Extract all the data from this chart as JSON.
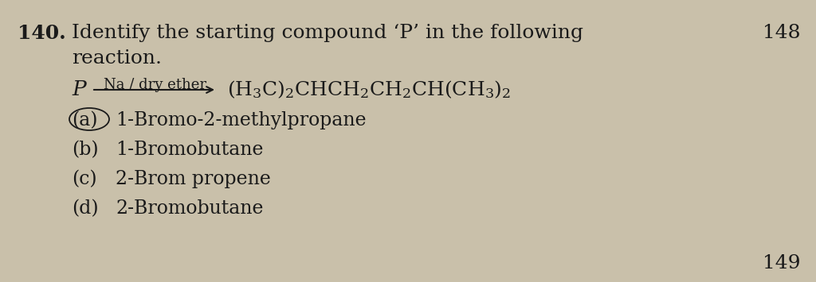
{
  "bg_color": "#c9c0aa",
  "text_color": "#1a1a1a",
  "question_number": "140.",
  "question_text": "Identify the starting compound ‘P’ in the following",
  "right_number": "148",
  "sub_text": "reaction.",
  "reaction_P": "P",
  "reaction_condition": "Na / dry ether",
  "options": [
    {
      "label": "(a)",
      "text": "1-Bromo-2-methylpropane",
      "circled": true
    },
    {
      "label": "(b)",
      "text": "1-Bromobutane",
      "circled": false
    },
    {
      "label": "(c)",
      "text": "2-Brom propene",
      "circled": false
    },
    {
      "label": "(d)",
      "text": "2-Bromobutane",
      "circled": false
    }
  ],
  "bottom_right_number": "149",
  "q_fontsize": 18,
  "option_fontsize": 17,
  "reaction_fontsize": 18,
  "small_fontsize": 13
}
